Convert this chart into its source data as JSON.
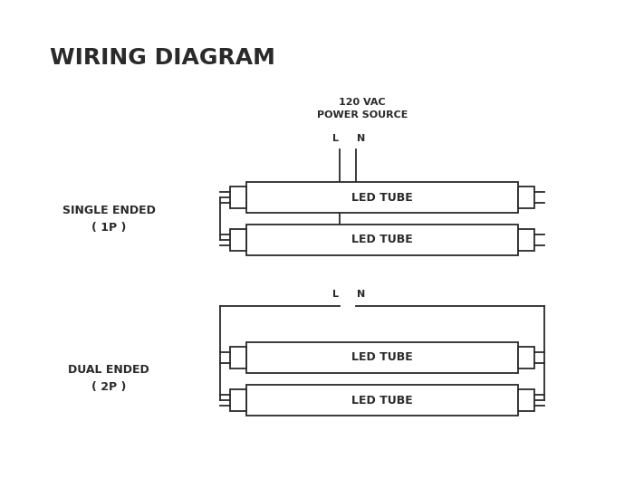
{
  "title": "WIRING DIAGRAM",
  "bg_color": "#ffffff",
  "line_color": "#2a2a2a",
  "title_fontsize": 18,
  "power_source_text": "120 VAC\nPOWER SOURCE",
  "single_ended_label": "SINGLE ENDED\n( 1P )",
  "dual_ended_label": "DUAL ENDED\n( 2P )",
  "led_tube_text": "LED TUBE",
  "L_label": "L",
  "N_label": "N",
  "tube_label_fontsize": 9,
  "side_label_fontsize": 9,
  "ps_fontsize": 8,
  "ln_fontsize": 8
}
